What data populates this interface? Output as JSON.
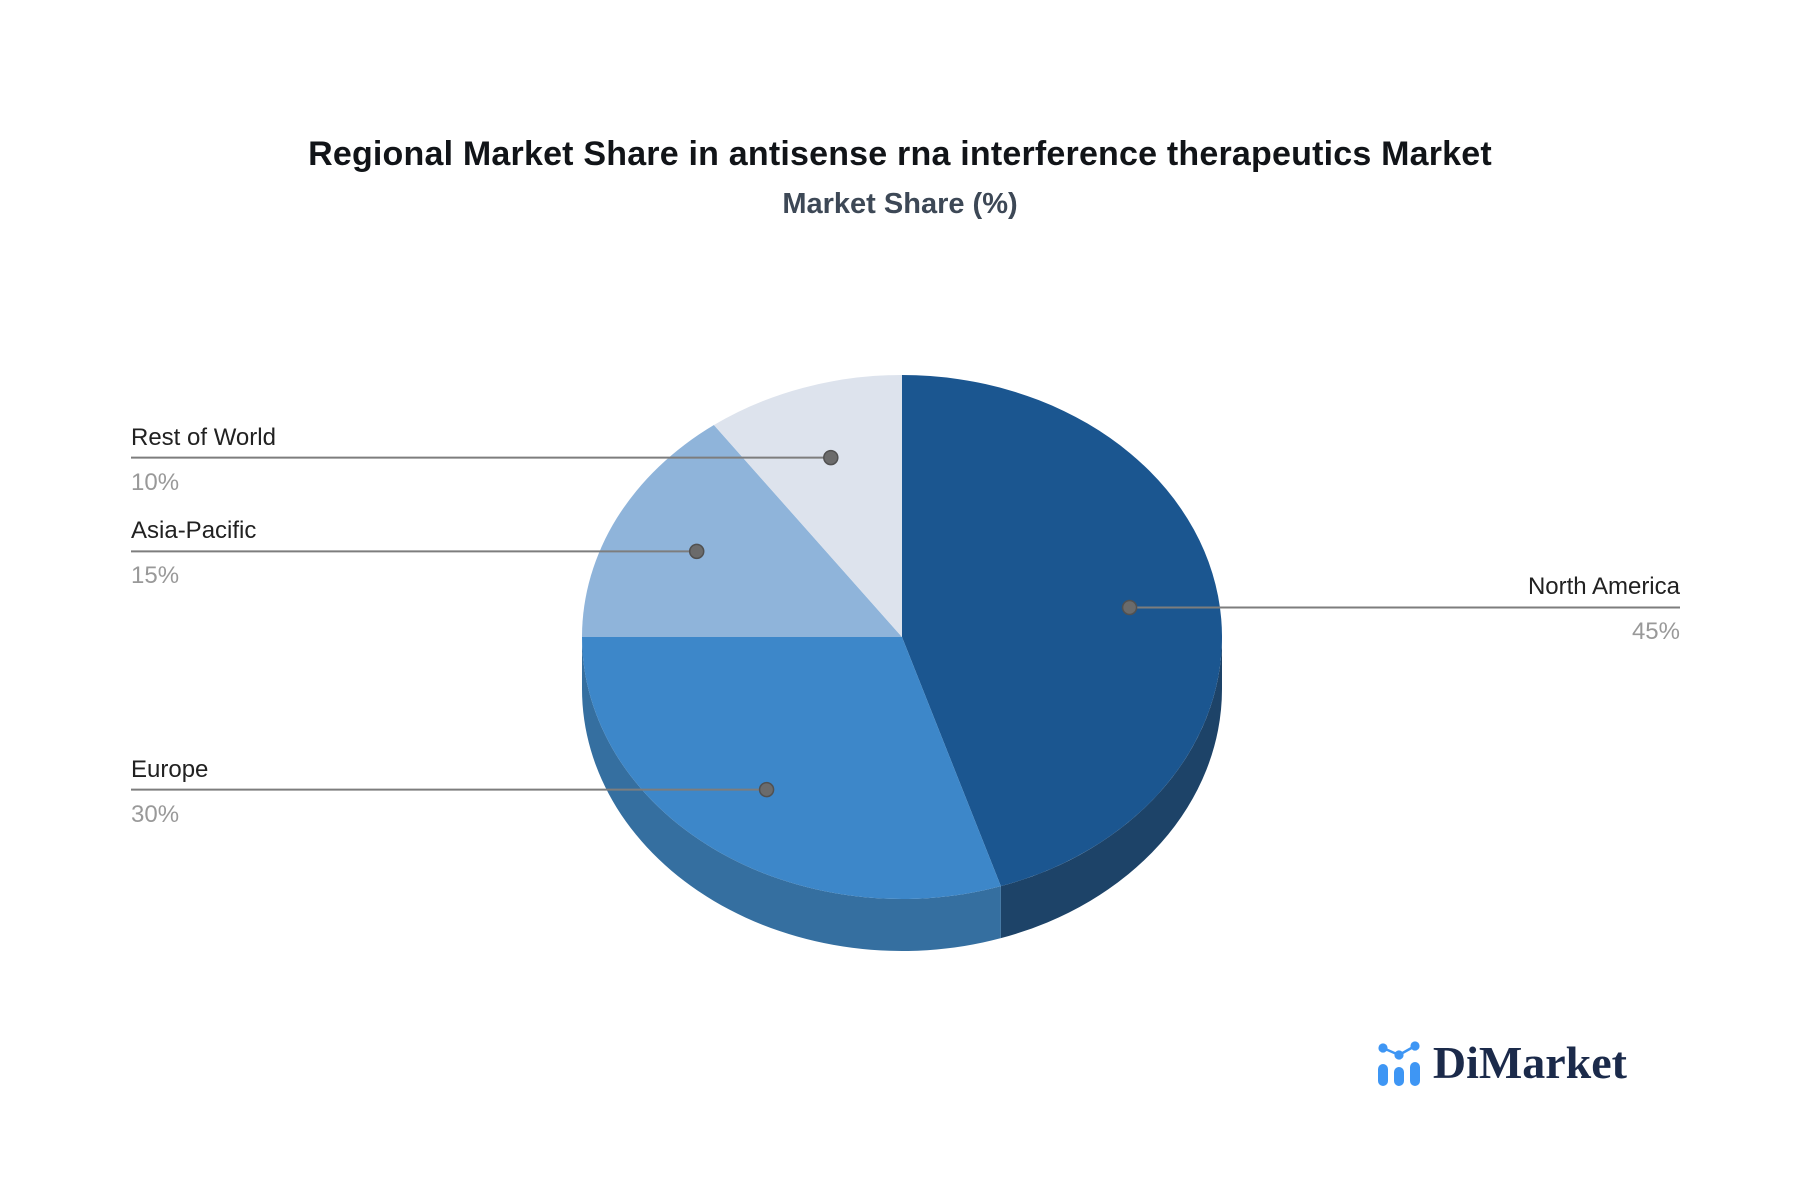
{
  "chart_data": {
    "type": "pie",
    "style": "3d",
    "title": "Regional Market Share in antisense rna interference therapeutics Market",
    "subtitle": "Market Share (%)",
    "unit": "%",
    "direction": "clockwise",
    "start_angle_deg": 0,
    "legend": "none (direct leader-line labels)",
    "slices": [
      {
        "label": "North America",
        "value": 45,
        "display_value": "45%",
        "color": "#1b5690",
        "side_color": "#1d4368"
      },
      {
        "label": "Europe",
        "value": 30,
        "display_value": "30%",
        "color": "#3d87c9",
        "side_color": "#356fa0"
      },
      {
        "label": "Asia-Pacific",
        "value": 15,
        "display_value": "15%",
        "color": "#8fb4da",
        "side_color": "#7596b8"
      },
      {
        "label": "Rest of World",
        "value": 10,
        "display_value": "10%",
        "color": "#dde3ed",
        "side_color": "#b8c2d1"
      }
    ],
    "leader_line_color": "#7d7d7d",
    "leader_dot_color": "#6b6b6b",
    "label_color": "#212121",
    "value_color": "#999999"
  },
  "branding": {
    "logo_text": "DiMarket",
    "logo_icon": "bar-chart-icon",
    "logo_text_color": "#1b2a4a",
    "logo_icon_color": "#3e96f4"
  }
}
